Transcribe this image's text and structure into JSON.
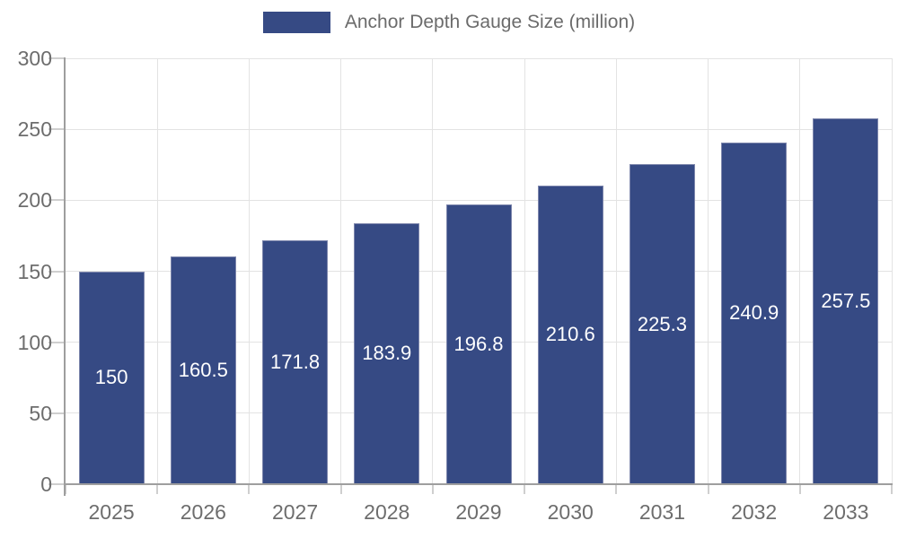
{
  "chart_data": {
    "type": "bar",
    "title": "",
    "legend": "Anchor Depth Gauge Size (million)",
    "legend_position": "top",
    "categories": [
      "2025",
      "2026",
      "2027",
      "2028",
      "2029",
      "2030",
      "2031",
      "2032",
      "2033"
    ],
    "values": [
      150,
      160.5,
      171.8,
      183.9,
      196.8,
      210.6,
      225.3,
      240.9,
      257.5
    ],
    "value_labels": [
      "150",
      "160.5",
      "171.8",
      "183.9",
      "196.8",
      "210.6",
      "225.3",
      "240.9",
      "257.5"
    ],
    "xlabel": "",
    "ylabel": "",
    "ylim": [
      0,
      300
    ],
    "yticks": [
      0,
      50,
      100,
      150,
      200,
      250,
      300
    ],
    "grid": true,
    "colors": {
      "bar_fill": "#364a84",
      "bar_border": "#7d86ac",
      "value_label": "#ffffff",
      "axis_line": "#9e9e9e",
      "grid_line": "#e3e3e3",
      "tick_mark": "#cfcfcf",
      "tick_label": "#6d6d6d",
      "legend_text": "#6b6b6b"
    }
  }
}
